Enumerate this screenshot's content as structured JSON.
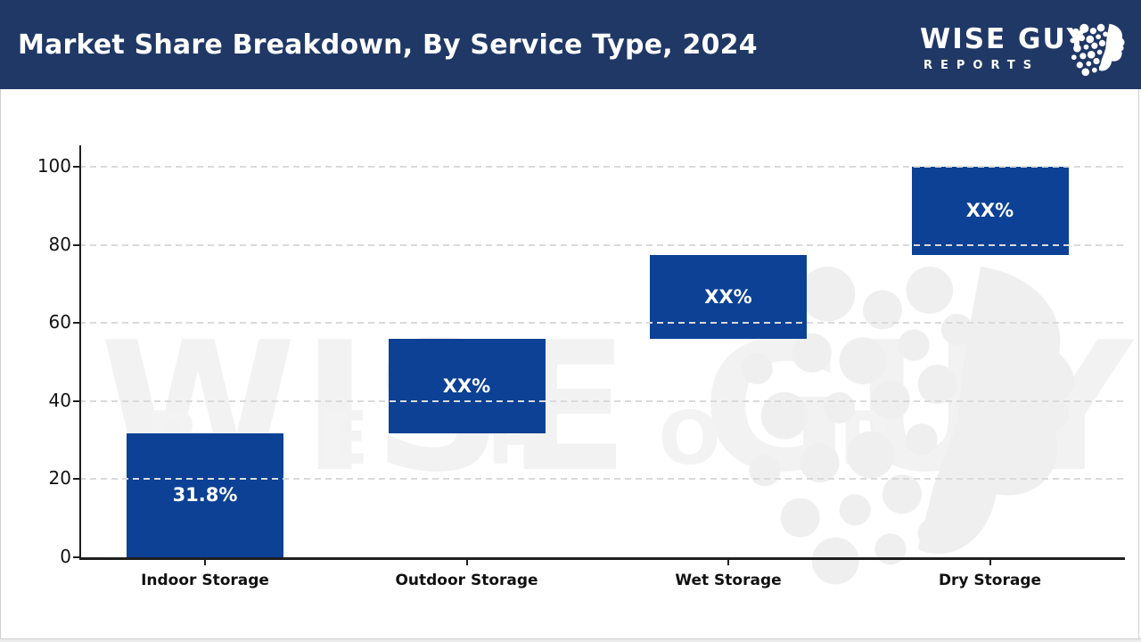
{
  "header": {
    "title": "Market Share Breakdown, By Service Type, 2024",
    "logo_line1": "WISE GUY",
    "logo_line2": "REPORTS"
  },
  "watermark": {
    "line1": "WISE GUY",
    "line2": "R E P O R T S"
  },
  "chart_data": {
    "type": "bar",
    "subtype": "waterfall",
    "title": "Market Share Breakdown, By Service Type, 2024",
    "categories": [
      "Indoor Storage",
      "Outdoor Storage",
      "Wet Storage",
      "Dry Storage"
    ],
    "segments": [
      {
        "start": 0,
        "end": 31.8,
        "label": "31.8%"
      },
      {
        "start": 31.8,
        "end": 55.9,
        "label": "XX%"
      },
      {
        "start": 55.9,
        "end": 77.4,
        "label": "XX%"
      },
      {
        "start": 77.4,
        "end": 100,
        "label": "XX%"
      }
    ],
    "y_ticks": [
      0,
      20,
      40,
      60,
      80,
      100
    ],
    "ylim": [
      0,
      105
    ],
    "xlabel": "",
    "ylabel": "",
    "grid": "horizontal-dashed",
    "legend": "none",
    "bar_color": "#0c4195",
    "bar_label_color": "#ffffff",
    "axis_color": "#1f1f1f",
    "gridline_color": "#dadada"
  },
  "colors": {
    "header_bg": "#203866",
    "header_text": "#ffffff",
    "chart_bg": "#ffffff",
    "watermark": "#f1f1f1"
  }
}
